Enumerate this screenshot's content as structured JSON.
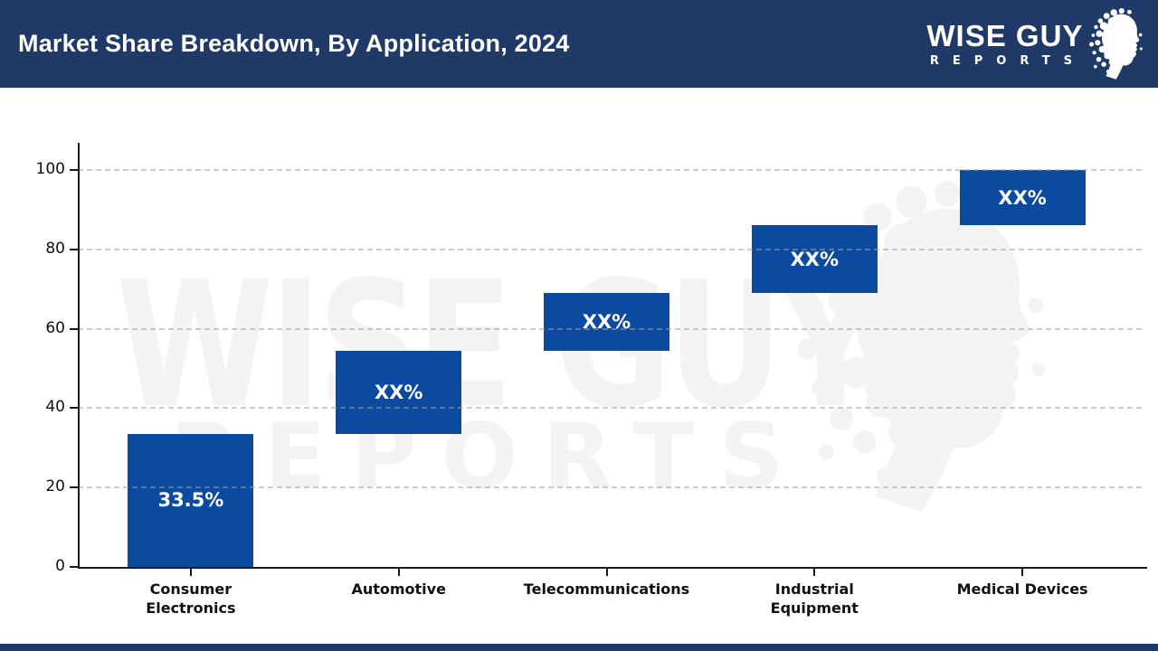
{
  "header": {
    "title": "Market Share Breakdown, By Application, 2024",
    "logo": {
      "wordmark": "WISE GUY",
      "subtext": "REPORTS"
    }
  },
  "watermark": {
    "wordmark": "WISE GUY",
    "subtext": "REPORTS"
  },
  "theme": {
    "header_bg": "#1f3a66",
    "footer_bg": "#1f3a66",
    "title_color": "#ffffff",
    "bar_color": "#0b4a9e",
    "bar_label_color": "#ffffff",
    "grid_color": "rgba(160,160,160,0.55)",
    "axis_color": "#1a1a1a",
    "tick_label_color": "#111111",
    "category_label_color": "#111111",
    "watermark_color": "#f3f3f5"
  },
  "chart_data": {
    "type": "bar",
    "subtype": "waterfall",
    "title": "Market Share Breakdown, By Application, 2024",
    "unit": "%",
    "categories": [
      "Consumer Electronics",
      "Automotive",
      "Telecommunications",
      "Industrial Equipment",
      "Medical Devices"
    ],
    "categories_display": [
      [
        "Consumer",
        "Electronics"
      ],
      [
        "Automotive"
      ],
      [
        "Telecommunications"
      ],
      [
        "Industrial",
        "Equipment"
      ],
      [
        "Medical Devices"
      ]
    ],
    "segments": [
      {
        "category": "Consumer Electronics",
        "start": 0,
        "end": 33.5,
        "label": "33.5%"
      },
      {
        "category": "Automotive",
        "start": 33.5,
        "end": 54.5,
        "label": "XX%"
      },
      {
        "category": "Telecommunications",
        "start": 54.5,
        "end": 69,
        "label": "XX%"
      },
      {
        "category": "Industrial Equipment",
        "start": 69,
        "end": 86,
        "label": "XX%"
      },
      {
        "category": "Medical Devices",
        "start": 86,
        "end": 100,
        "label": "XX%"
      }
    ],
    "y_ticks": [
      0,
      20,
      40,
      60,
      80,
      100
    ],
    "ylim": [
      0,
      105
    ],
    "xlabel": "",
    "ylabel": "",
    "grid": true,
    "grid_style": "dashed",
    "legend": false
  }
}
